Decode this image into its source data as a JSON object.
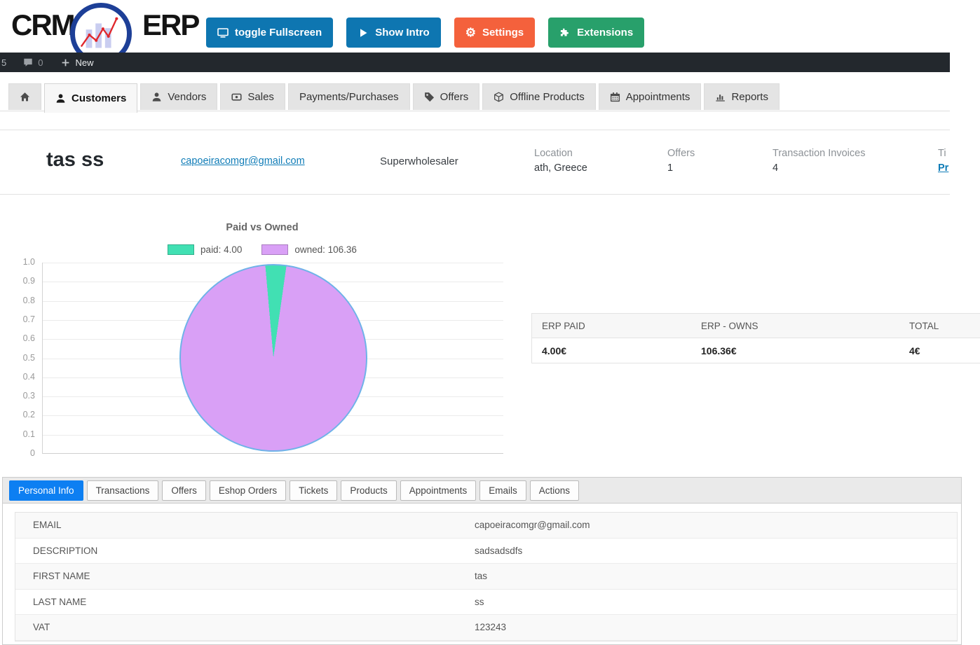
{
  "header": {
    "logo_left": "CRM",
    "logo_right": "ERP",
    "buttons": [
      {
        "name": "toggle-fullscreen-button",
        "icon": "monitor-icon",
        "label": "toggle Fullscreen",
        "color": "#0e76b1"
      },
      {
        "name": "show-intro-button",
        "icon": "play-icon",
        "label": "Show Intro",
        "color": "#0e76b1"
      },
      {
        "name": "settings-button",
        "icon": "gear-icon",
        "label": "Settings",
        "color": "#f4613c"
      },
      {
        "name": "extensions-button",
        "icon": "puzzle-icon",
        "label": "Extensions",
        "color": "#28a06b"
      }
    ]
  },
  "admin_bar": {
    "left_fragment": "5",
    "comments_count": "0",
    "new_label": "New"
  },
  "nav_tabs": [
    {
      "name": "tab-home",
      "icon": "home-icon",
      "label": "",
      "active": false
    },
    {
      "name": "tab-customers",
      "icon": "user-icon",
      "label": "Customers",
      "active": true
    },
    {
      "name": "tab-vendors",
      "icon": "user-icon",
      "label": "Vendors",
      "active": false
    },
    {
      "name": "tab-sales",
      "icon": "register-icon",
      "label": "Sales",
      "active": false
    },
    {
      "name": "tab-payments-purchases",
      "icon": "",
      "label": "Payments/Purchases",
      "active": false
    },
    {
      "name": "tab-offers",
      "icon": "tag-icon",
      "label": "Offers",
      "active": false
    },
    {
      "name": "tab-offline-products",
      "icon": "cube-icon",
      "label": "Offline Products",
      "active": false
    },
    {
      "name": "tab-appointments",
      "icon": "calendar-icon",
      "label": "Appointments",
      "active": false
    },
    {
      "name": "tab-reports",
      "icon": "bar-chart-icon",
      "label": "Reports",
      "active": false
    }
  ],
  "customer": {
    "name": "tas ss",
    "email": "capoeiracomgr@gmail.com",
    "type": "Superwholesaler",
    "fields": [
      {
        "label": "Location",
        "value": "ath, Greece",
        "link": false
      },
      {
        "label": "Offers",
        "value": "1",
        "link": false
      },
      {
        "label": "Transaction Invoices",
        "value": "4",
        "link": false
      },
      {
        "label": "Ti",
        "value": "Pr",
        "link": true
      }
    ]
  },
  "chart_data": {
    "type": "pie",
    "title": "Paid vs Owned",
    "series": [
      {
        "name": "paid",
        "value": 4.0,
        "legend_label": "paid: 4.00",
        "color": "#41e0b3"
      },
      {
        "name": "owned",
        "value": 106.36,
        "legend_label": "owned: 106.36",
        "color": "#d9a0f6"
      }
    ],
    "start_angle_deg": -5,
    "pie_border_color": "#6fb3e8",
    "y_ticks": [
      "1.0",
      "0.9",
      "0.8",
      "0.7",
      "0.6",
      "0.5",
      "0.4",
      "0.3",
      "0.2",
      "0.1",
      "0"
    ],
    "ylim": [
      0,
      1
    ],
    "grid": true,
    "legend_position": "top"
  },
  "erp_summary": {
    "headers": [
      "ERP PAID",
      "ERP - OWNS",
      "TOTAL"
    ],
    "values": [
      "4.00€",
      "106.36€",
      "4€"
    ]
  },
  "detail_tabs": [
    {
      "label": "Personal Info",
      "active": true
    },
    {
      "label": "Transactions",
      "active": false
    },
    {
      "label": "Offers",
      "active": false
    },
    {
      "label": "Eshop Orders",
      "active": false
    },
    {
      "label": "Tickets",
      "active": false
    },
    {
      "label": "Products",
      "active": false
    },
    {
      "label": "Appointments",
      "active": false
    },
    {
      "label": "Emails",
      "active": false
    },
    {
      "label": "Actions",
      "active": false
    }
  ],
  "detail_table": {
    "rows": [
      {
        "label": "EMAIL",
        "value": "capoeiracomgr@gmail.com"
      },
      {
        "label": "DESCRIPTION",
        "value": "sadsadsdfs"
      },
      {
        "label": "FIRST NAME",
        "value": "tas"
      },
      {
        "label": "LAST NAME",
        "value": "ss"
      },
      {
        "label": "VAT",
        "value": "123243"
      }
    ]
  }
}
